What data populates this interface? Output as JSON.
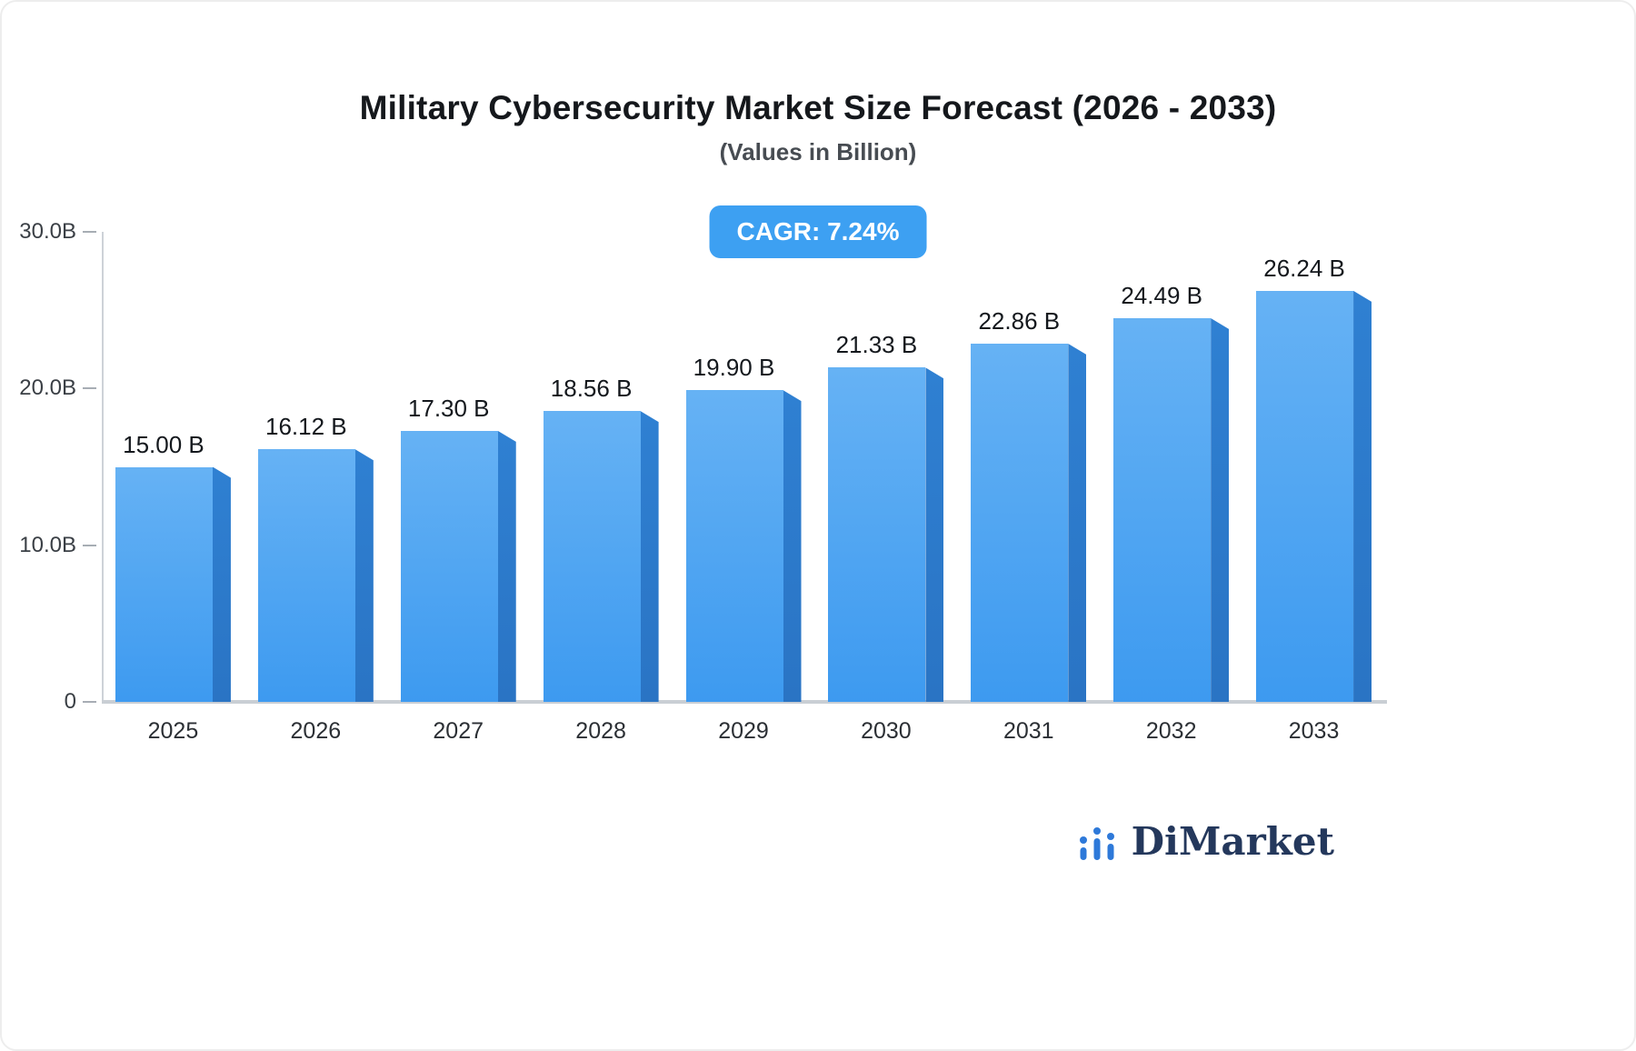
{
  "chart_data": {
    "type": "bar",
    "title": "Military Cybersecurity Market Size Forecast (2026 - 2033)",
    "subtitle": "(Values in Billion)",
    "badge": "CAGR: 7.24%",
    "categories": [
      "2025",
      "2026",
      "2027",
      "2028",
      "2029",
      "2030",
      "2031",
      "2032",
      "2033"
    ],
    "values": [
      15.0,
      16.12,
      17.3,
      18.56,
      19.9,
      21.33,
      22.86,
      24.49,
      26.24
    ],
    "value_labels": [
      "15.00 B",
      "16.12 B",
      "17.30 B",
      "18.56 B",
      "19.90 B",
      "21.33 B",
      "22.86 B",
      "24.49 B",
      "26.24 B"
    ],
    "xlabel": "",
    "ylabel": "",
    "ylim": [
      0,
      30
    ],
    "yticks": [
      {
        "value": 0,
        "label": "0"
      },
      {
        "value": 10,
        "label": "10.0B"
      },
      {
        "value": 20,
        "label": "20.0B"
      },
      {
        "value": 30,
        "label": "30.0B"
      }
    ],
    "grid": false,
    "legend": false,
    "bar_color_top": "#66b2f4",
    "bar_color_bottom": "#3d9af0",
    "bar_side_color_top": "#2f80d2",
    "bar_side_color_bottom": "#2a74c4",
    "badge_color": "#3da0f2"
  },
  "logo": {
    "text": "DiMarket",
    "icon": "bar-chart-logo-icon",
    "icon_color": "#2e79d9",
    "text_color": "#24385c"
  }
}
